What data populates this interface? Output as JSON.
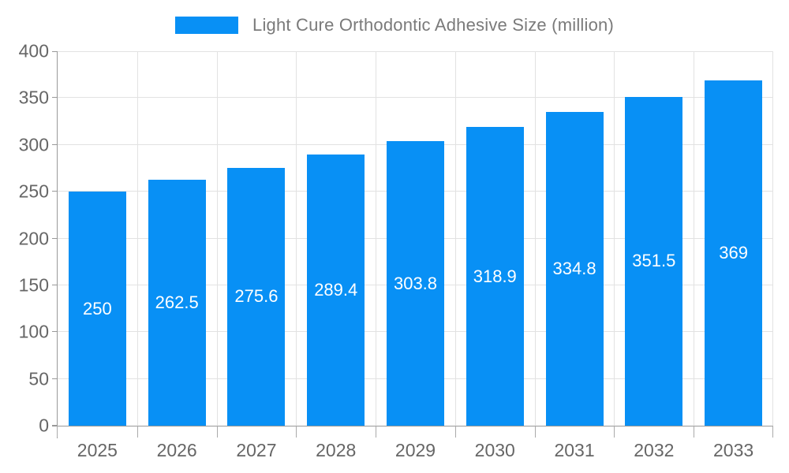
{
  "legend": {
    "label": "Light Cure Orthodontic Adhesive Size (million)"
  },
  "colors": {
    "bar": "#0890f5",
    "grid": "#e2e2e2",
    "axis_line": "#999999",
    "axis_text": "#666666",
    "legend_text": "#7a7a7a",
    "bar_label_text": "#ffffff"
  },
  "chart_data": {
    "type": "bar",
    "title": "Light Cure Orthodontic Adhesive Size (million)",
    "categories": [
      "2025",
      "2026",
      "2027",
      "2028",
      "2029",
      "2030",
      "2031",
      "2032",
      "2033"
    ],
    "values": [
      250,
      262.5,
      275.6,
      289.4,
      303.8,
      318.9,
      334.8,
      351.5,
      369
    ],
    "value_labels": [
      "250",
      "262.5",
      "275.6",
      "289.4",
      "303.8",
      "318.9",
      "334.8",
      "351.5",
      "369"
    ],
    "xlabel": "",
    "ylabel": "",
    "ylim": [
      0,
      400
    ],
    "ytick_step": 50,
    "ytick_labels": [
      "0",
      "50",
      "100",
      "150",
      "200",
      "250",
      "300",
      "350",
      "400"
    ],
    "grid": true,
    "legend_position": "top",
    "bar_label_position": "center"
  }
}
